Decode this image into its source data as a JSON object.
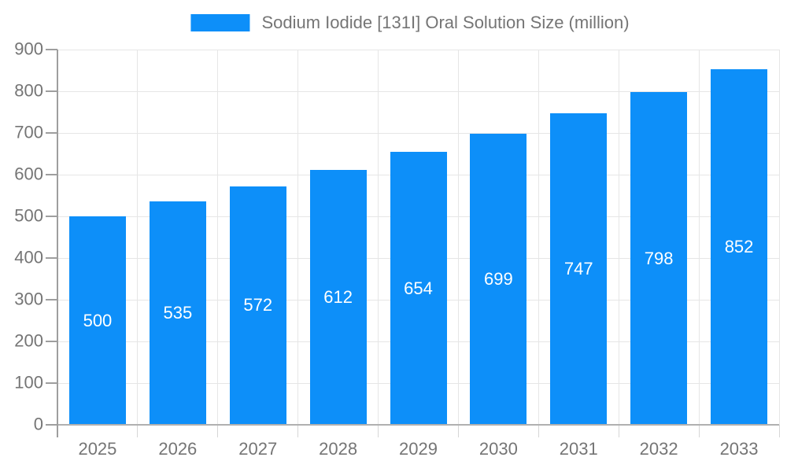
{
  "legend": {
    "swatch_color": "#0d8ff9"
  },
  "chart_data": {
    "type": "bar",
    "title": "Sodium Iodide [131I] Oral Solution Size (million)",
    "categories": [
      "2025",
      "2026",
      "2027",
      "2028",
      "2029",
      "2030",
      "2031",
      "2032",
      "2033"
    ],
    "values": [
      500,
      535,
      572,
      612,
      654,
      699,
      747,
      798,
      852
    ],
    "series": [
      {
        "name": "Sodium Iodide [131I] Oral Solution Size (million)",
        "values": [
          500,
          535,
          572,
          612,
          654,
          699,
          747,
          798,
          852
        ]
      }
    ],
    "xlabel": "",
    "ylabel": "",
    "ylim": [
      0,
      900
    ],
    "yticks": [
      0,
      100,
      200,
      300,
      400,
      500,
      600,
      700,
      800,
      900
    ],
    "grid": true,
    "legend_position": "top-center",
    "bar_color": "#0d8ff9",
    "value_label_color": "#ffffff",
    "axis_text_color": "#757575",
    "gridline_color": "#e6e6e6",
    "axis_line_color": "#9e9e9e"
  }
}
